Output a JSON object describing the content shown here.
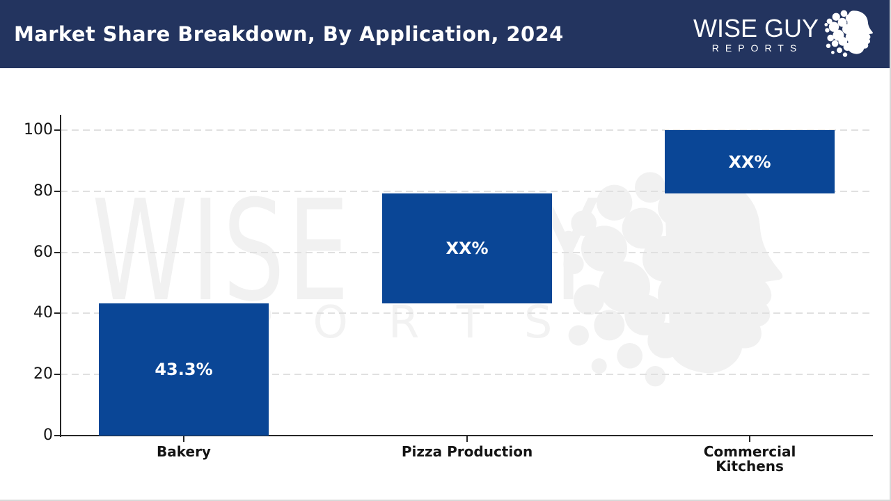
{
  "header": {
    "title": "Market Share Breakdown, By Application, 2024",
    "bg_color": "#23345f",
    "logo": {
      "line1": "WISE GUY",
      "line2": "REPORTS"
    }
  },
  "watermark": {
    "line1": "WISE GUY",
    "line2": "REPORTS"
  },
  "chart_data": {
    "type": "bar",
    "subtype": "waterfall",
    "title": "Market Share Breakdown, By Application, 2024",
    "categories": [
      "Bakery",
      "Pizza Production",
      "Commercial Kitchens"
    ],
    "segments": [
      {
        "category": "Bakery",
        "start": 0,
        "end": 43.3,
        "label": "43.3%"
      },
      {
        "category": "Pizza Production",
        "start": 43.3,
        "end": 79.2,
        "label": "XX%"
      },
      {
        "category": "Commercial Kitchens",
        "start": 79.2,
        "end": 100,
        "label": "XX%"
      }
    ],
    "values_displayed": [
      "43.3%",
      "XX%",
      "XX%"
    ],
    "ylim": [
      0,
      100
    ],
    "yticks": [
      0,
      20,
      40,
      60,
      80,
      100
    ],
    "xlabel": "",
    "ylabel": "",
    "grid": "horizontal-dashed",
    "legend": "none",
    "bar_color": "#0a4696",
    "bar_label_color": "#ffffff"
  },
  "colors": {
    "header_bg": "#23345f",
    "bar": "#0a4696",
    "grid": "#e0e0e0",
    "axis": "#262626",
    "text": "#141414",
    "watermark": "#f1f1f1",
    "border": "#d9d9d9"
  }
}
